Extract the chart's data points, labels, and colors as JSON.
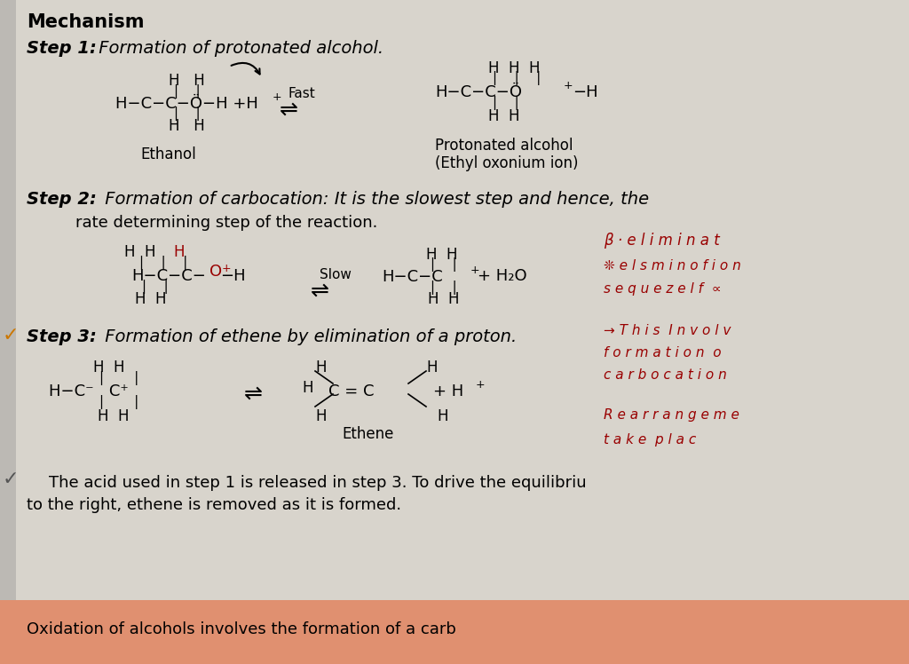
{
  "bg_color": "#d8d4cc",
  "page_color": "#e8e4dc",
  "title_mechanism": "Mechanism",
  "step1_title_bold": "Step 1:",
  "step1_title_rest": " Formation of protonated alcohol.",
  "step2_title_bold": "Step 2:",
  "step2_title_rest": " Formation of carbocation: It is the slowest step and hence, the",
  "step2_title2": "rate determining step of the reaction.",
  "step3_title_bold": "Step 3:",
  "step3_title_rest": " Formation of ethene by elimination of a proton.",
  "bottom_text1": "The acid used in step 1 is released in step 3. To drive the equilibriu",
  "bottom_text2": "to the right, ethene is removed as it is formed.",
  "highlight_text": "Oxidation of alcohols involves the formation of a carb",
  "highlight_color": "#e09070",
  "ethanol_label": "Ethanol",
  "protonated_label": "Protonated alcohol",
  "ethyl_oxonium_label": "(Ethyl oxonium ion)",
  "fast_label": "Fast",
  "slow_label": "Slow",
  "ethene_label": "Ethene",
  "red_color": "#990000",
  "checkmark_color1": "#cc7700",
  "checkmark_color2": "#555555",
  "left_bar_color": "#888888"
}
